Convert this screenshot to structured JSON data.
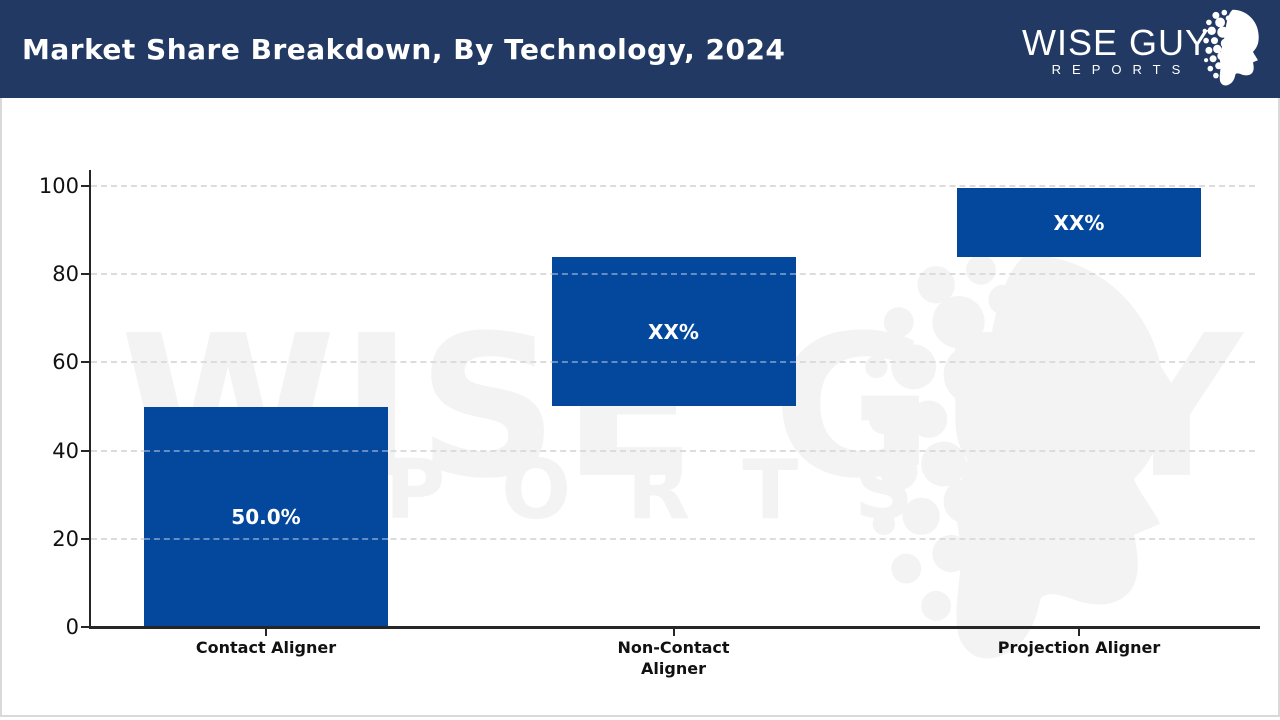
{
  "header": {
    "title": "Market Share Breakdown, By Technology, 2024",
    "logo": {
      "brand_line1": "WISE GUY",
      "brand_line2": "REPORTS",
      "head_icon": "dotted-face-profile-icon"
    }
  },
  "watermark": {
    "line1": "WISE GUY",
    "line2": "REPORTS"
  },
  "colors": {
    "header_bg": "#223a63",
    "title_text": "#ffffff",
    "bar_fill": "#04489e",
    "bar_label_text": "#ffffff",
    "axis": "#262626",
    "grid": "#dcdcdc",
    "watermark": "#f3f3f3"
  },
  "chart_data": {
    "type": "bar",
    "subtype": "floating-segment waterfall (market share breakdown)",
    "title": "Market Share Breakdown, By Technology, 2024",
    "categories": [
      "Contact Aligner",
      "Non-Contact\nAligner",
      "Projection Aligner"
    ],
    "segments": [
      {
        "category": "Contact Aligner",
        "start": 0,
        "end": 50.0,
        "value": 50.0,
        "label": "50.0%"
      },
      {
        "category": "Non-Contact Aligner",
        "start": 50.0,
        "end": 83.9,
        "value": 33.9,
        "label": "XX%"
      },
      {
        "category": "Projection Aligner",
        "start": 83.9,
        "end": 99.5,
        "value": 15.6,
        "label": "XX%"
      }
    ],
    "bar_labels": [
      "50.0%",
      "XX%",
      "XX%"
    ],
    "xlabel": "",
    "ylabel": "",
    "ylim": [
      0,
      100
    ],
    "yticks": [
      0,
      20,
      40,
      60,
      80,
      100
    ],
    "grid": "horizontal dashed",
    "legend": "none",
    "bar_color": "#04489e"
  }
}
